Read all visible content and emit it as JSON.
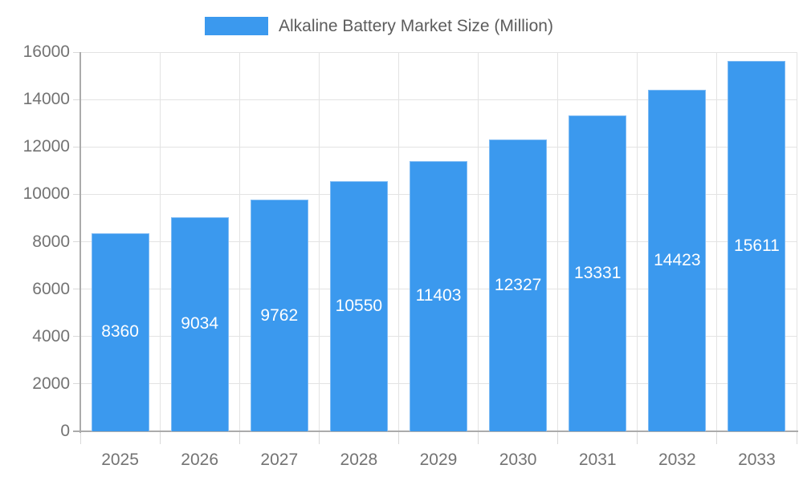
{
  "legend": {
    "label": "Alkaline Battery Market Size (Million)"
  },
  "chart_data": {
    "type": "bar",
    "title": "Alkaline Battery Market Size (Million)",
    "categories": [
      "2025",
      "2026",
      "2027",
      "2028",
      "2029",
      "2030",
      "2031",
      "2032",
      "2033"
    ],
    "values": [
      8360,
      9034,
      9762,
      10550,
      11403,
      12327,
      13331,
      14423,
      15611
    ],
    "value_labels": [
      "8360",
      "9034",
      "9762",
      "10550",
      "11403",
      "12327",
      "13331",
      "14423",
      "15611"
    ],
    "xlabel": "",
    "ylabel": "",
    "ylim": [
      0,
      16000
    ],
    "ytick_step": 2000,
    "ytick_labels": [
      "0",
      "2000",
      "4000",
      "6000",
      "8000",
      "10000",
      "12000",
      "14000",
      "16000"
    ],
    "grid": true,
    "legend_position": "top",
    "value_label_position": "inside-center",
    "colors": {
      "bar": "#3b99ee",
      "bar_border": "#7fbbf4",
      "grid": "#e3e3e3",
      "axis": "#ababab",
      "tick": "#d9d9d9",
      "tick_label": "#737373",
      "value_label": "#ffffff",
      "legend_text": "#5c5c5c",
      "background": "#ffffff"
    }
  }
}
